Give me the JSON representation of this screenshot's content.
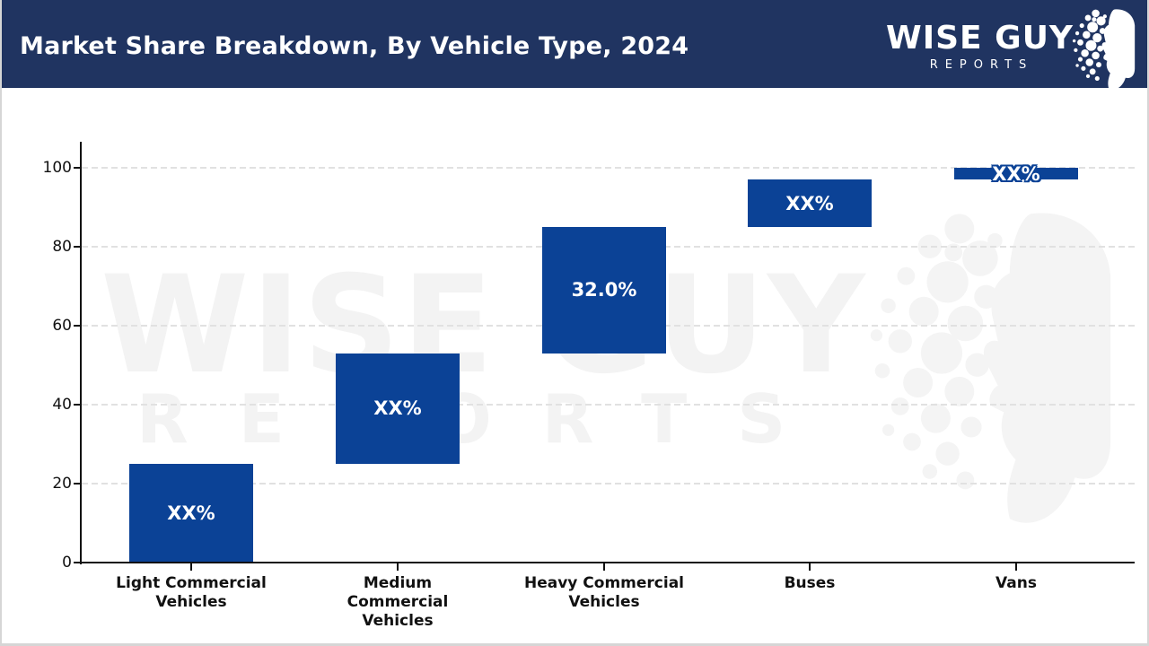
{
  "header": {
    "title": "Market Share Breakdown, By Vehicle Type, 2024",
    "logo": {
      "line1": "WISE GUY",
      "line2": "REPORTS"
    }
  },
  "watermark": {
    "line1": "WISE GUY",
    "line2": "REPORTS"
  },
  "chart_data": {
    "type": "bar",
    "subtype": "waterfall",
    "title": "Market Share Breakdown, By Vehicle Type, 2024",
    "xlabel": "",
    "ylabel": "",
    "categories": [
      "Light Commercial Vehicles",
      "Medium Commercial Vehicles",
      "Heavy Commercial Vehicles",
      "Buses",
      "Vans"
    ],
    "series": [
      {
        "name": "Market Share %",
        "values": [
          25,
          28,
          32,
          12,
          3
        ],
        "bottoms": [
          0,
          25,
          53,
          85,
          97
        ],
        "labels": [
          "XX%",
          "XX%",
          "32.0%",
          "XX%",
          "XX%"
        ]
      }
    ],
    "yticks": [
      0,
      20,
      40,
      60,
      80,
      100
    ],
    "ylim": [
      0,
      106
    ],
    "grid": "horizontal-dashed",
    "legend": "none"
  },
  "colors": {
    "header_bg": "#203461",
    "bar": "#0b4296",
    "bar_label": "#ffffff",
    "grid": "#e1e1e1",
    "axis": "#111111",
    "watermark": "#f3f3f3",
    "page_border": "#d6d6d6",
    "title_text": "#ffffff"
  }
}
